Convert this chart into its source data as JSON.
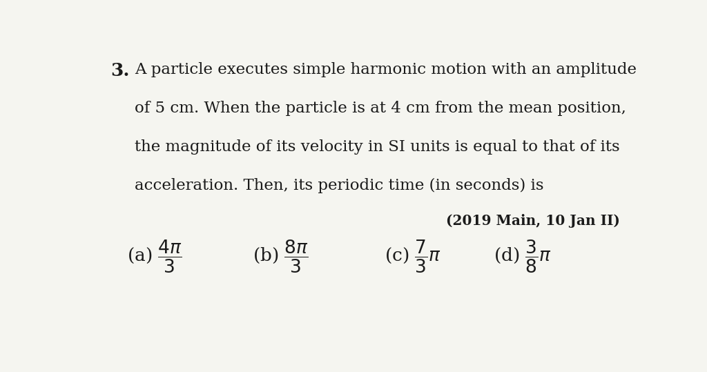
{
  "background_color": "#f5f5f0",
  "question_number": "3.",
  "question_text_lines": [
    "A particle executes simple harmonic motion with an amplitude",
    "of 5 cm. When the particle is at 4 cm from the mean position,",
    "the magnitude of its velocity in SI units is equal to that of its",
    "acceleration. Then, its periodic time (in seconds) is"
  ],
  "source_text": "(2019 Main, 10 Jan II)",
  "options_math": [
    "(a) $\\dfrac{4\\pi}{3}$",
    "(b) $\\dfrac{8\\pi}{3}$",
    "(c) $\\dfrac{7}{3}\\pi$",
    "(d) $\\dfrac{3}{8}\\pi$"
  ],
  "text_color": "#1a1a1a",
  "font_size_body": 16.5,
  "font_size_source": 14.5,
  "font_size_options": 19,
  "font_size_number": 19
}
